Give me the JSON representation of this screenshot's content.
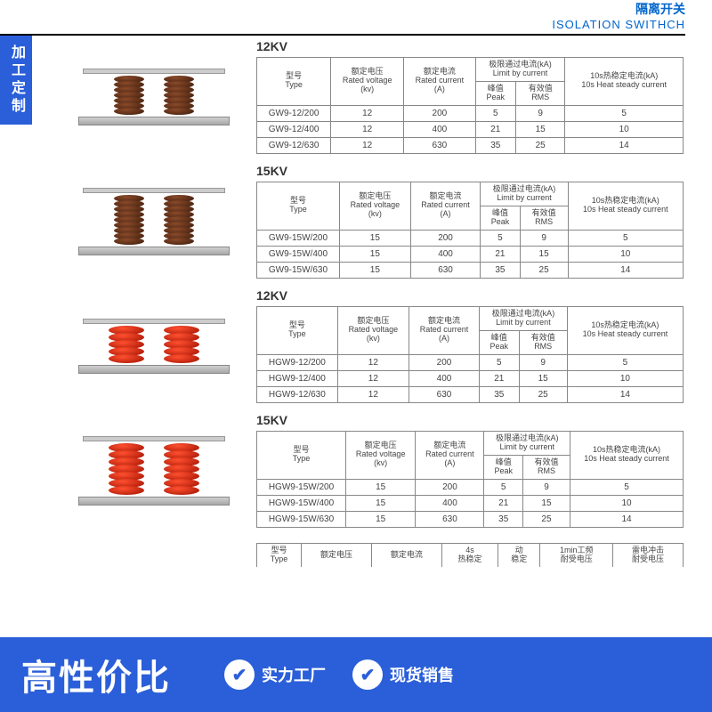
{
  "header": {
    "cn": "隔离开关",
    "en": "ISOLATION SWITHCH"
  },
  "badge_left": "加工定制",
  "banner": {
    "main": "高性价比",
    "tags": [
      {
        "icon": "✔",
        "text": "实力工厂"
      },
      {
        "icon": "✔",
        "text": "现货销售"
      }
    ],
    "bg": "#2b5fd9"
  },
  "columns": {
    "type_cn": "型号",
    "type_en": "Type",
    "voltage_cn": "额定电压",
    "voltage_en": "Rated voltage",
    "voltage_unit": "(kv)",
    "current_cn": "额定电流",
    "current_en": "Rated current",
    "current_unit": "(A)",
    "limit_cn": "极限通过电流(kA)",
    "limit_en": "Limit by current",
    "peak_cn": "峰值",
    "peak_en": "Peak",
    "rms_cn": "有效值",
    "rms_en": "RMS",
    "heat_cn": "10s热稳定电流(kA)",
    "heat_en": "10s Heat steady current"
  },
  "blocks": [
    {
      "title": "12KV",
      "insulator": {
        "color": "brown",
        "discs": 7,
        "shape": "round"
      },
      "rows": [
        {
          "type": "GW9-12/200",
          "v": "12",
          "a": "200",
          "peak": "5",
          "rms": "9",
          "heat": "5"
        },
        {
          "type": "GW9-12/400",
          "v": "12",
          "a": "400",
          "peak": "21",
          "rms": "15",
          "heat": "10"
        },
        {
          "type": "GW9-12/630",
          "v": "12",
          "a": "630",
          "peak": "35",
          "rms": "25",
          "heat": "14"
        }
      ]
    },
    {
      "title": "15KV",
      "insulator": {
        "color": "brown",
        "discs": 9,
        "shape": "round"
      },
      "rows": [
        {
          "type": "GW9-15W/200",
          "v": "15",
          "a": "200",
          "peak": "5",
          "rms": "9",
          "heat": "5"
        },
        {
          "type": "GW9-15W/400",
          "v": "15",
          "a": "400",
          "peak": "21",
          "rms": "15",
          "heat": "10"
        },
        {
          "type": "GW9-15W/630",
          "v": "15",
          "a": "630",
          "peak": "35",
          "rms": "25",
          "heat": "14"
        }
      ]
    },
    {
      "title": "12KV",
      "insulator": {
        "color": "red",
        "discs": 5,
        "shape": "wide"
      },
      "rows": [
        {
          "type": "HGW9-12/200",
          "v": "12",
          "a": "200",
          "peak": "5",
          "rms": "9",
          "heat": "5"
        },
        {
          "type": "HGW9-12/400",
          "v": "12",
          "a": "400",
          "peak": "21",
          "rms": "15",
          "heat": "10"
        },
        {
          "type": "HGW9-12/630",
          "v": "12",
          "a": "630",
          "peak": "35",
          "rms": "25",
          "heat": "14"
        }
      ]
    },
    {
      "title": "15KV",
      "insulator": {
        "color": "red",
        "discs": 7,
        "shape": "wide"
      },
      "rows": [
        {
          "type": "HGW9-15W/200",
          "v": "15",
          "a": "200",
          "peak": "5",
          "rms": "9",
          "heat": "5"
        },
        {
          "type": "HGW9-15W/400",
          "v": "15",
          "a": "400",
          "peak": "21",
          "rms": "15",
          "heat": "10"
        },
        {
          "type": "HGW9-15W/630",
          "v": "15",
          "a": "630",
          "peak": "35",
          "rms": "25",
          "heat": "14"
        }
      ]
    }
  ],
  "partial_table": {
    "cols": [
      "型号\nType",
      "额定电压",
      "额定电流",
      "4s\n热稳定",
      "动\n稳定",
      "1min工频\n耐受电压",
      "雷电冲击\n耐受电压"
    ]
  }
}
